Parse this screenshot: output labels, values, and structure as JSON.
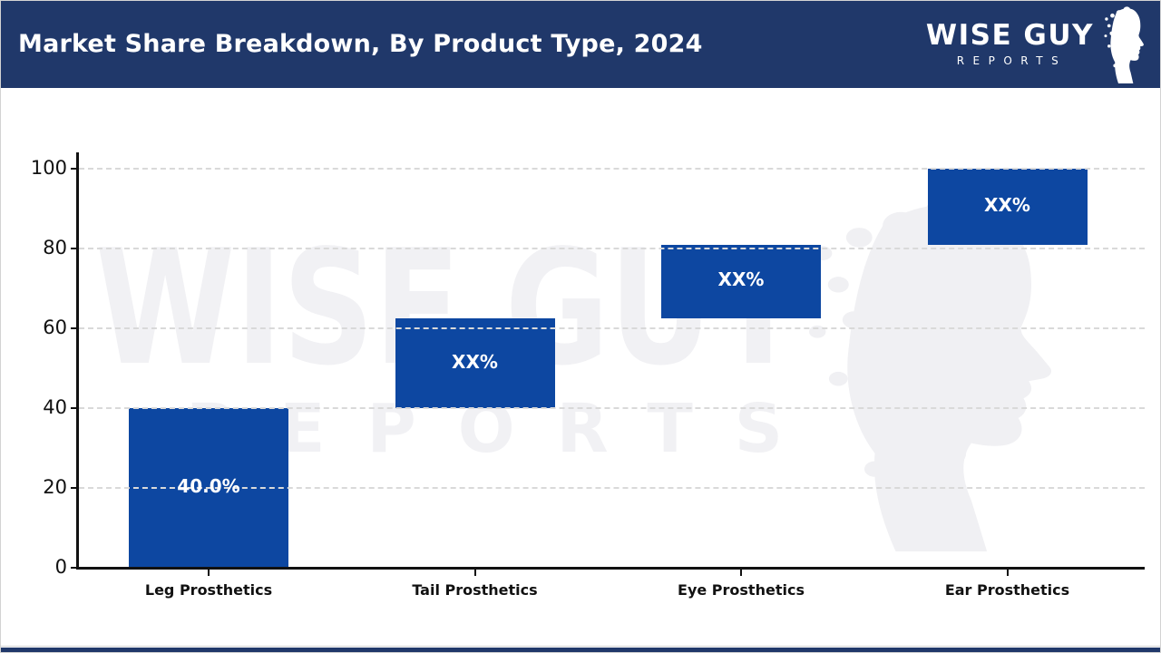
{
  "header": {
    "logo": {
      "line1": "WISE GUY",
      "line2": "REPORTS"
    }
  },
  "watermark": {
    "line1": "WISE GUY",
    "line2": "REPORTS"
  },
  "chart_data": {
    "type": "bar",
    "subtype": "waterfall",
    "title": "Market Share Breakdown, By Product Type, 2024",
    "categories": [
      "Leg Prosthetics",
      "Tail Prosthetics",
      "Eye Prosthetics",
      "Ear Prosthetics"
    ],
    "segments": [
      {
        "category": "Leg Prosthetics",
        "start": 0,
        "end": 40,
        "label": "40.0%"
      },
      {
        "category": "Tail Prosthetics",
        "start": 40,
        "end": 62.5,
        "label": "XX%"
      },
      {
        "category": "Eye Prosthetics",
        "start": 62.5,
        "end": 81,
        "label": "XX%"
      },
      {
        "category": "Ear Prosthetics",
        "start": 81,
        "end": 100,
        "label": "XX%"
      }
    ],
    "xlabel": "",
    "ylabel": "",
    "ylim": [
      0,
      100
    ],
    "yticks": [
      0,
      20,
      40,
      60,
      80,
      100
    ],
    "grid": "horizontal-dashed",
    "legend": "none",
    "colors": {
      "bar": "#0d47a1",
      "bar_label": "#ffffff",
      "axis": "#111111",
      "grid": "#d9d9d9",
      "header_bg": "#20386a",
      "watermark": "#f1f1f4"
    }
  }
}
